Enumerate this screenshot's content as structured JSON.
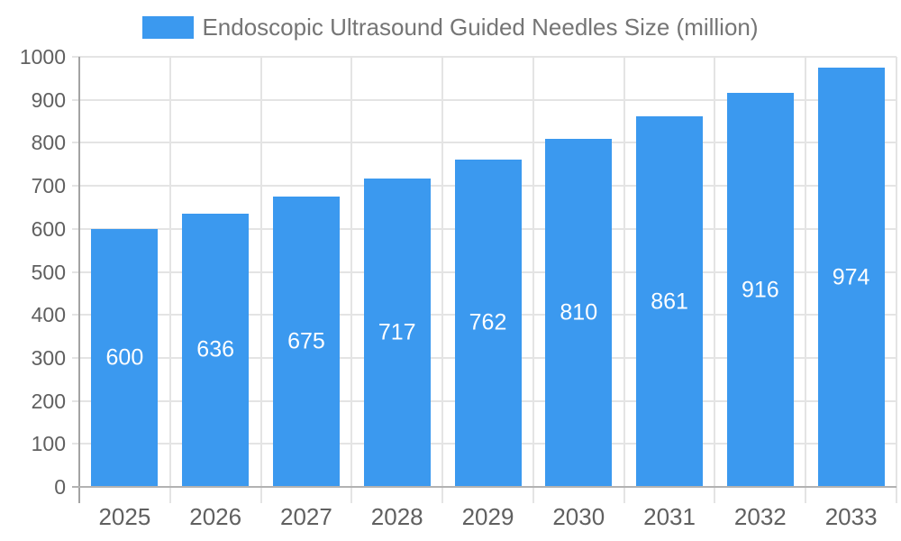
{
  "chart_data": {
    "type": "bar",
    "title": "Endoscopic Ultrasound Guided Needles Size (million)",
    "legend_position": "top-center",
    "categories": [
      "2025",
      "2026",
      "2027",
      "2028",
      "2029",
      "2030",
      "2031",
      "2032",
      "2033"
    ],
    "series": [
      {
        "name": "Endoscopic Ultrasound Guided Needles Size (million)",
        "values": [
          600,
          636,
          675,
          717,
          762,
          810,
          861,
          916,
          974
        ]
      }
    ],
    "xlabel": "",
    "ylabel": "",
    "ylim": [
      0,
      1000
    ],
    "yticks": [
      0,
      100,
      200,
      300,
      400,
      500,
      600,
      700,
      800,
      900,
      1000
    ],
    "grid": true,
    "bar_labels_shown": true,
    "bar_label_position": "inside-center",
    "colors": {
      "bar": "#3B99EF",
      "bar_label": "#FFFFFF",
      "axis_text": "#606060",
      "legend_text": "#757575",
      "grid_line": "#E4E4E4",
      "x_axis_line": "#B2B2B2",
      "y_axis_line": "#A3A3A3",
      "background": "#FFFFFF"
    }
  }
}
